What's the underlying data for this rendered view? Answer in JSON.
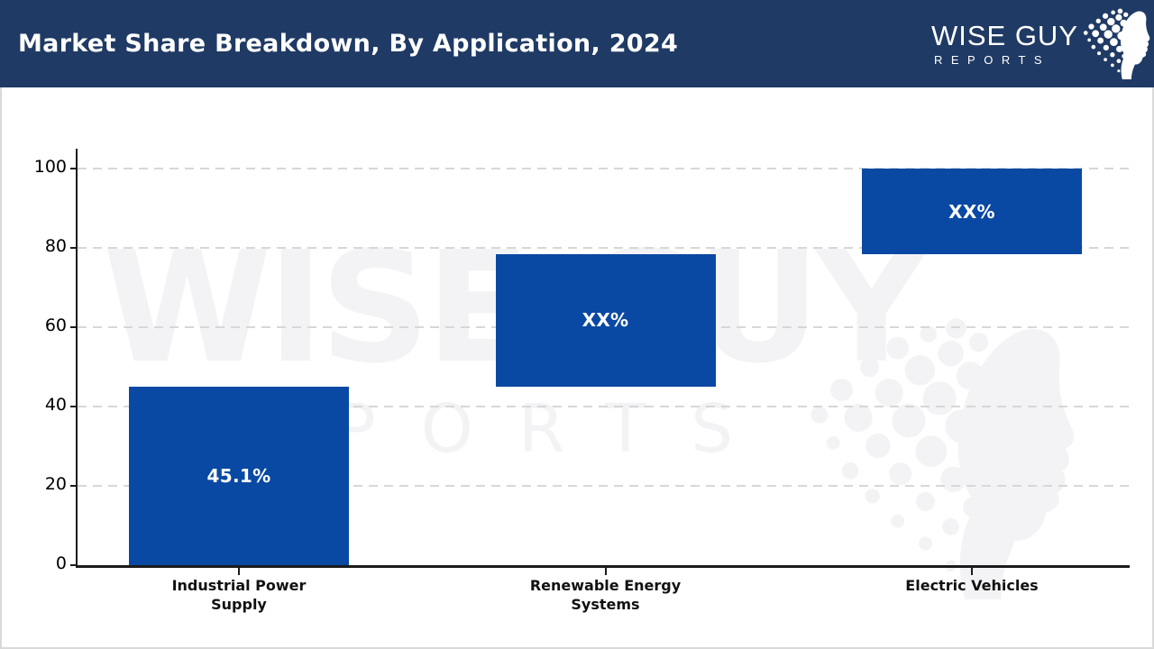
{
  "header": {
    "title": "Market Share Breakdown, By Application, 2024",
    "brand_name": "WISE GUY",
    "brand_sub": "REPORTS",
    "bg_color": "#1f3a64"
  },
  "watermark": {
    "name": "WISE GUY",
    "sub": "REPORTS"
  },
  "chart_data": {
    "type": "bar",
    "variant": "waterfall-segments",
    "title": "Market Share Breakdown, By Application, 2024",
    "categories": [
      [
        "Industrial Power",
        "Supply"
      ],
      [
        "Renewable Energy",
        "Systems"
      ],
      [
        "Electric Vehicles"
      ]
    ],
    "bars": [
      {
        "name": "Industrial Power Supply",
        "start": 0,
        "end": 45.1,
        "value": 45.1,
        "label": "45.1%"
      },
      {
        "name": "Renewable Energy Systems",
        "start": 45.1,
        "end": 78.4,
        "value": 33.3,
        "label": "XX%"
      },
      {
        "name": "Electric Vehicles",
        "start": 78.4,
        "end": 100,
        "value": 21.6,
        "label": "XX%"
      }
    ],
    "yticks": [
      0,
      20,
      40,
      60,
      80,
      100
    ],
    "ylim": [
      0,
      105
    ],
    "xlabel": "",
    "ylabel": "",
    "bar_color": "#0a49a3",
    "bar_label_color": "#ffffff",
    "grid": {
      "horizontal": true,
      "style": "dashed",
      "color": "#d7d7d7"
    },
    "legend": "none"
  }
}
